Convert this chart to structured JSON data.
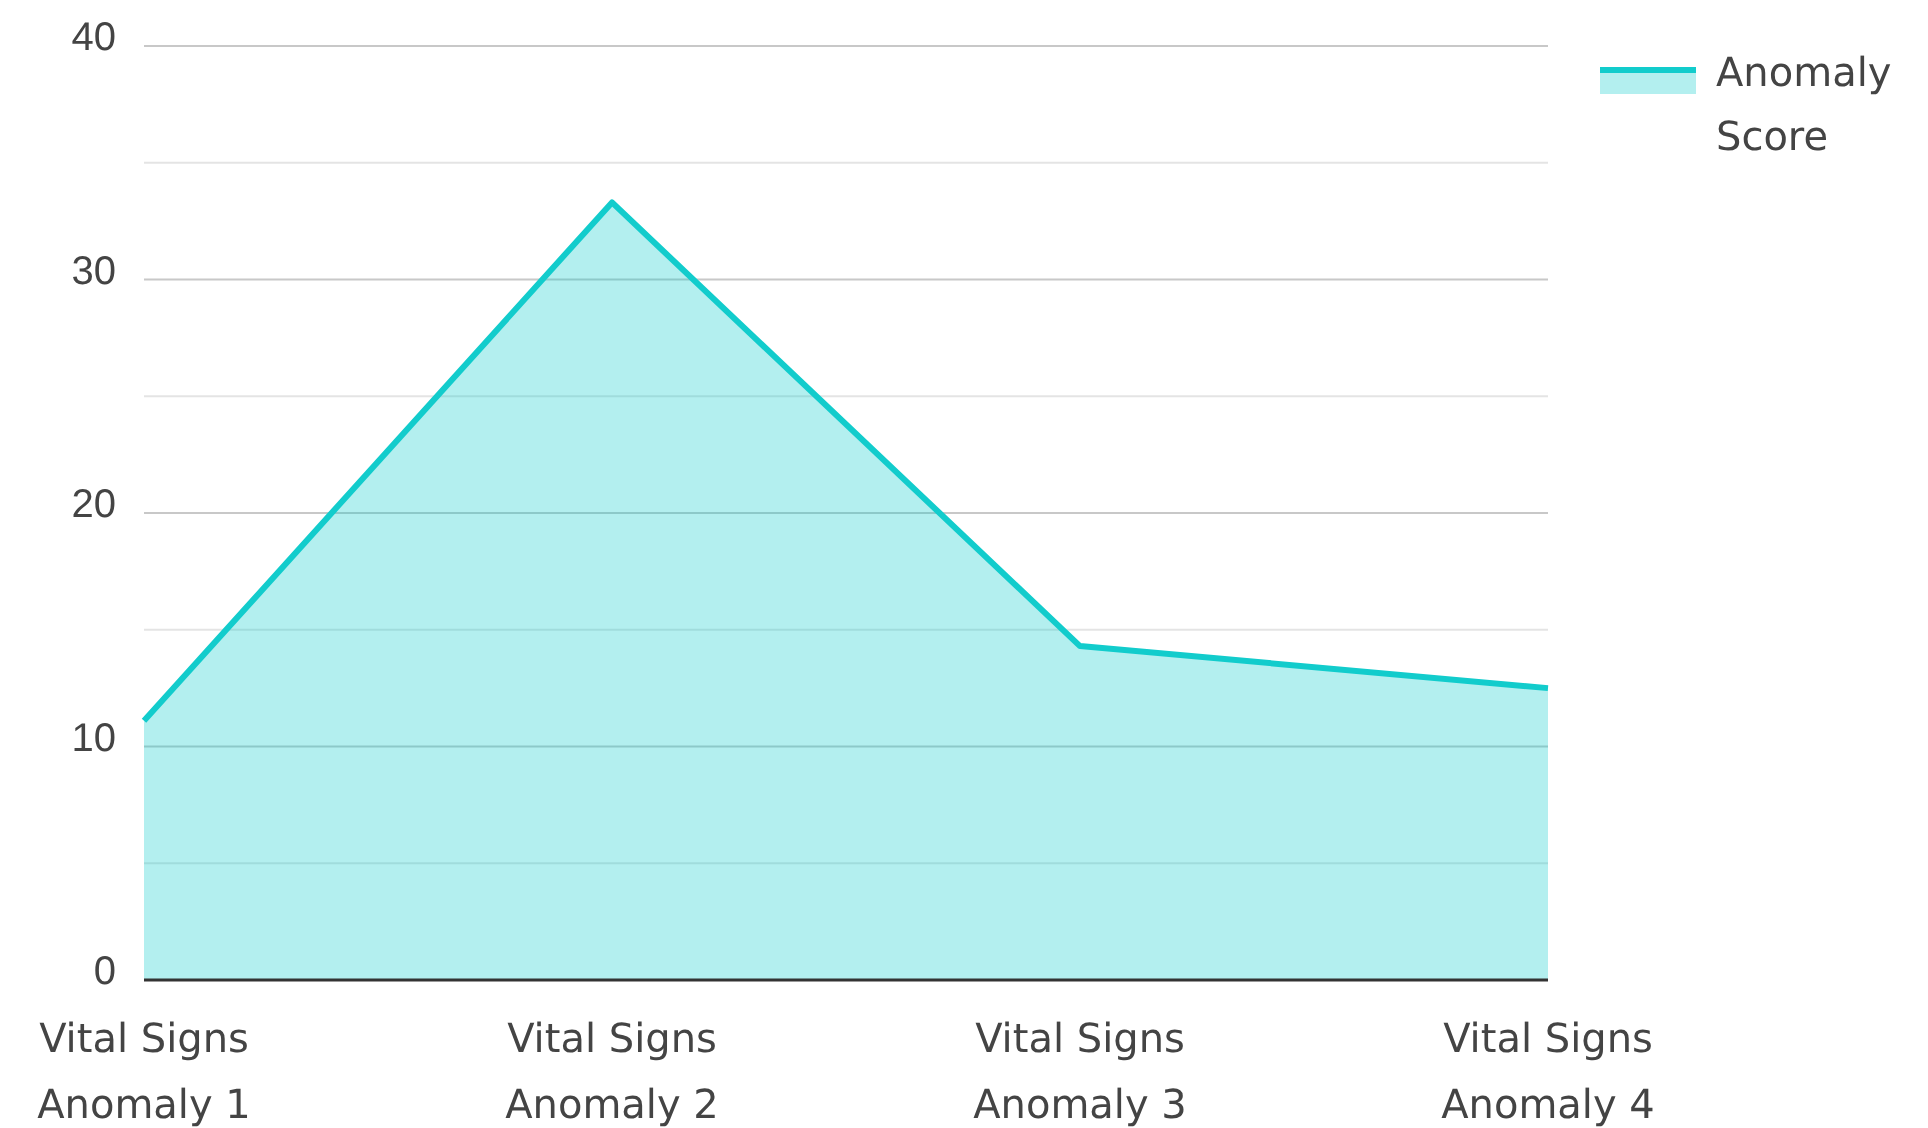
{
  "chart_data": {
    "type": "area",
    "categories": [
      "Vital Signs Anomaly 1",
      "Vital Signs Anomaly 2",
      "Vital Signs Anomaly 3",
      "Vital Signs Anomaly 4"
    ],
    "series": [
      {
        "name": "Anomaly Score",
        "color": "#12cccc",
        "values": [
          11.1,
          33.3,
          14.3,
          12.5
        ]
      }
    ],
    "ylim": [
      0,
      40
    ],
    "yticks": [
      0,
      {
        "value": 5,
        "label": null
      },
      10,
      {
        "value": 15,
        "label": null
      },
      20,
      {
        "value": 25,
        "label": null
      },
      30,
      {
        "value": 35,
        "label": null
      },
      40
    ],
    "grid": true,
    "legend": "top right",
    "marker": "none"
  }
}
